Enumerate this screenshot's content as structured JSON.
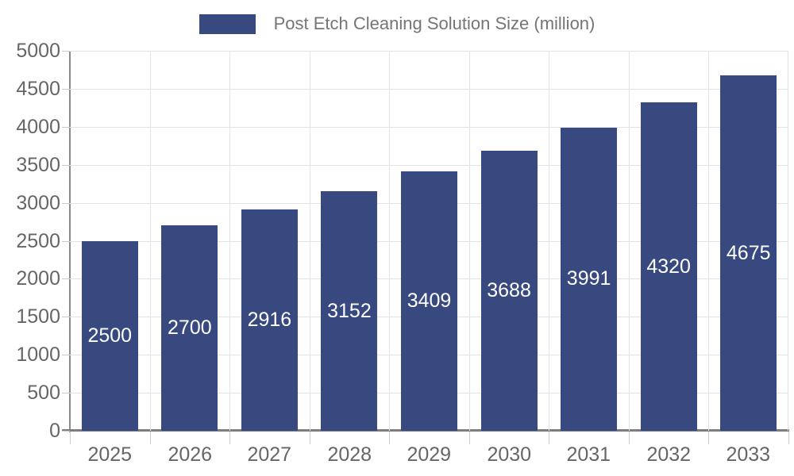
{
  "legend": {
    "label": "Post Etch Cleaning Solution Size (million)"
  },
  "chart_data": {
    "type": "bar",
    "title": "Post Etch Cleaning Solution Size (million)",
    "categories": [
      "2025",
      "2026",
      "2027",
      "2028",
      "2029",
      "2030",
      "2031",
      "2032",
      "2033"
    ],
    "values": [
      2500,
      2700,
      2916,
      3152,
      3409,
      3688,
      3991,
      4320,
      4675
    ],
    "xlabel": "",
    "ylabel": "",
    "ylim": [
      0,
      5000
    ],
    "yticks": [
      0,
      500,
      1000,
      1500,
      2000,
      2500,
      3000,
      3500,
      4000,
      4500,
      5000
    ],
    "grid": true,
    "legend_position": "top",
    "bar_labels_inside": true
  },
  "style": {
    "bar_color": "#37497f",
    "bar_label_color": "#ffffff",
    "grid_color": "#e3e3e3",
    "axis_line_color": "#7e7e7e",
    "tick_color": "#cccccc",
    "axis_text_color": "#666666",
    "legend_text_color": "#757575",
    "background_color": "#ffffff"
  }
}
